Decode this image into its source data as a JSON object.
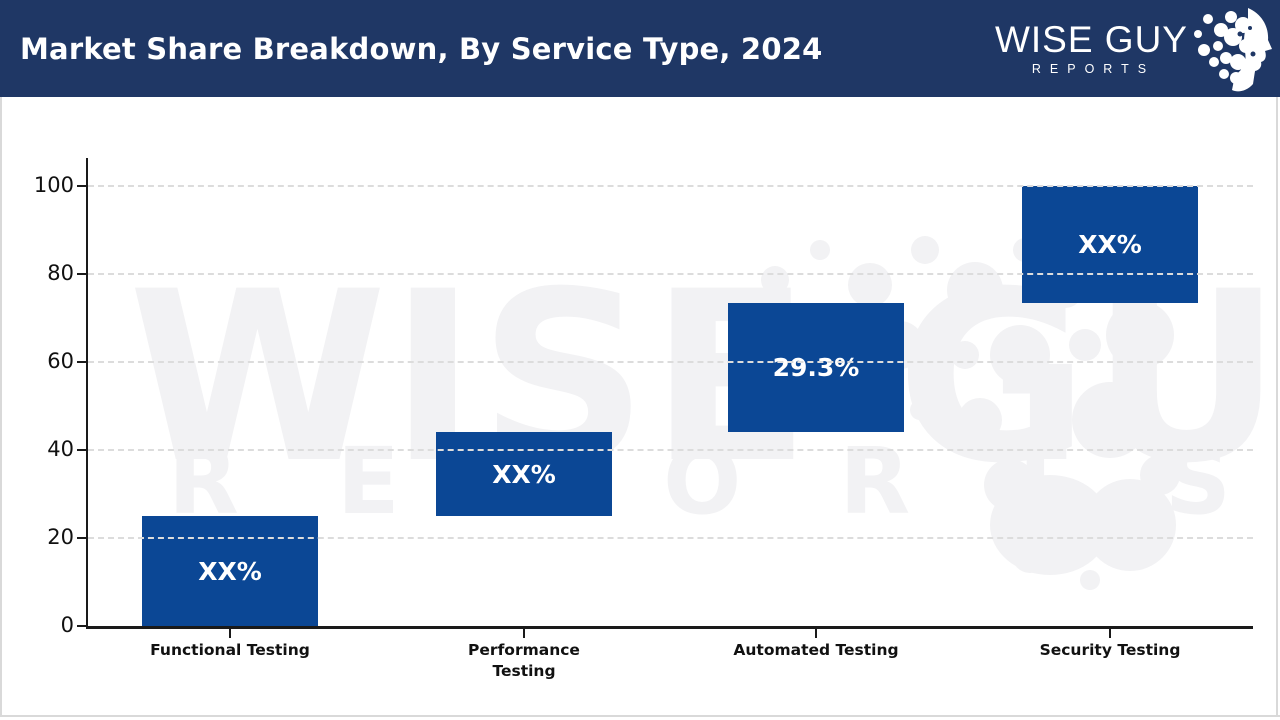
{
  "header": {
    "title": "Market Share Breakdown, By Service Type, 2024",
    "bg_color": "#1f3765",
    "text_color": "#ffffff",
    "logo": {
      "brand": "WISE GUY",
      "sub": "REPORTS"
    }
  },
  "watermark": {
    "brand": "WISE GUY",
    "sub": "REPORTS"
  },
  "chart_data": {
    "type": "bar",
    "subtype": "floating-waterfall",
    "title": "Market Share Breakdown, By Service Type, 2024",
    "categories": [
      "Functional Testing",
      "Performance\nTesting",
      "Automated Testing",
      "Security Testing"
    ],
    "bars": [
      {
        "category": "Functional Testing",
        "start": 0,
        "end": 25,
        "label": "XX%"
      },
      {
        "category": "Performance Testing",
        "start": 25,
        "end": 44,
        "label": "XX%"
      },
      {
        "category": "Automated Testing",
        "start": 44,
        "end": 73.3,
        "label": "29.3%"
      },
      {
        "category": "Security Testing",
        "start": 73.3,
        "end": 100,
        "label": "XX%"
      }
    ],
    "xlabel": "",
    "ylabel": "",
    "ylim": [
      0,
      100
    ],
    "yticks": [
      0,
      20,
      40,
      60,
      80,
      100
    ],
    "grid": "horizontal-dashed",
    "legend": "none",
    "bar_color": "#0b4795",
    "bar_label_color": "#ffffff",
    "axis_color": "#1a1a1a",
    "grid_color": "#dcdcdc"
  }
}
